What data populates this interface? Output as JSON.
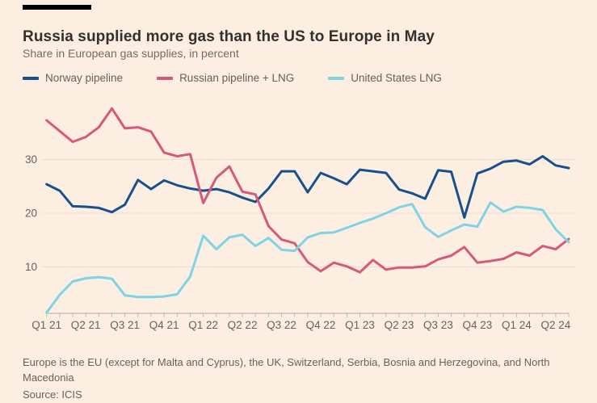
{
  "header": {
    "title": "Russia supplied more gas than the US to Europe in May",
    "subtitle": "Share in European gas supplies, in percent"
  },
  "legend": [
    {
      "label": "Norway pipeline",
      "color": "#17508f"
    },
    {
      "label": "Russian pipeline + LNG",
      "color": "#d6587b"
    },
    {
      "label": "United States LNG",
      "color": "#7ed4e6"
    }
  ],
  "footer": {
    "note": "Europe is the EU (except for Malta and Cyprus), the UK, Switzerland, Serbia, Bosnia and Herzegovina, and North Macedonia",
    "source": "Source: ICIS"
  },
  "chart_data": {
    "type": "line",
    "title": "Russia supplied more gas than the US to Europe in May",
    "subtitle": "Share in European gas supplies, in percent",
    "x_unit": "month",
    "x_start": "2021-01",
    "x_end": "2024-05",
    "n_points": 41,
    "quarter_labels": [
      "Q1 21",
      "Q2 21",
      "Q3 21",
      "Q4 21",
      "Q1 22",
      "Q2 22",
      "Q3 22",
      "Q4 22",
      "Q1 23",
      "Q2 23",
      "Q3 23",
      "Q4 23",
      "Q1 24",
      "Q2 24"
    ],
    "yticks": [
      10,
      20,
      30
    ],
    "ylim": [
      1.4,
      41
    ],
    "grid": true,
    "legend_position": "top",
    "series": [
      {
        "name": "Norway pipeline",
        "color": "#17508f",
        "values": [
          25.4,
          24.2,
          21.3,
          21.2,
          21.0,
          20.2,
          21.6,
          26.2,
          24.5,
          26.1,
          25.2,
          24.6,
          24.2,
          24.5,
          23.9,
          22.9,
          22.1,
          24.6,
          27.8,
          27.8,
          23.9,
          27.5,
          26.5,
          25.4,
          28.1,
          27.8,
          27.5,
          24.4,
          23.7,
          22.7,
          28.0,
          27.7,
          19.2,
          27.4,
          28.3,
          29.6,
          29.8,
          29.1,
          30.6,
          28.9,
          28.4
        ]
      },
      {
        "name": "Russian pipeline + LNG",
        "color": "#d6587b",
        "values": [
          37.3,
          35.3,
          33.3,
          34.2,
          36.0,
          39.5,
          35.8,
          36.0,
          35.2,
          31.3,
          30.6,
          31.0,
          21.9,
          26.6,
          28.7,
          24.0,
          23.5,
          17.6,
          15.1,
          14.4,
          10.9,
          9.2,
          10.8,
          10.1,
          9.0,
          11.3,
          9.5,
          9.9,
          9.9,
          10.1,
          11.4,
          12.1,
          13.7,
          10.8,
          11.1,
          11.5,
          12.7,
          12.1,
          13.9,
          13.3,
          15.2
        ]
      },
      {
        "name": "United States LNG",
        "color": "#7ed4e6",
        "values": [
          1.5,
          4.8,
          7.3,
          7.9,
          8.1,
          7.8,
          4.7,
          4.4,
          4.4,
          4.5,
          4.9,
          8.2,
          15.8,
          13.3,
          15.5,
          16.0,
          13.9,
          15.4,
          13.2,
          13.0,
          15.5,
          16.3,
          16.4,
          17.3,
          18.2,
          19.0,
          20.0,
          21.1,
          21.7,
          17.4,
          15.6,
          16.8,
          17.9,
          17.5,
          22.0,
          20.3,
          21.2,
          21.0,
          20.6,
          17.0,
          14.6
        ]
      }
    ]
  },
  "style": {
    "background": "#fdeee2",
    "grid_color": "#eedccd",
    "axis_color": "#b5a99c",
    "tick_color": "#c4b6a8",
    "axis_label_color": "#6b6157"
  }
}
